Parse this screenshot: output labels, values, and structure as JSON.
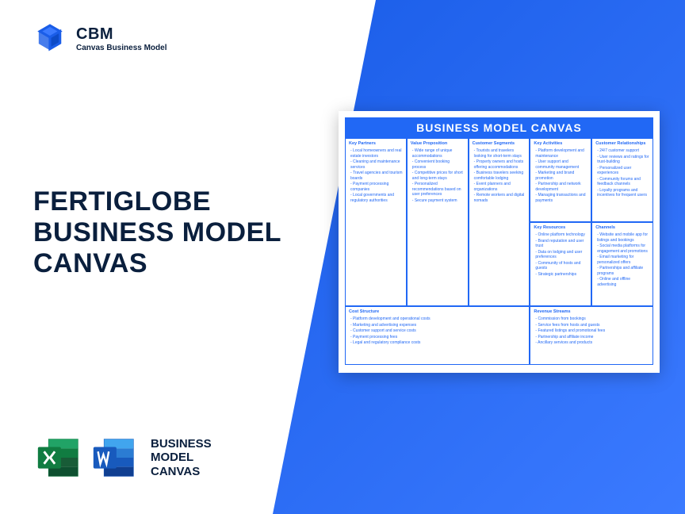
{
  "logo": {
    "title": "CBM",
    "subtitle": "Canvas Business Model"
  },
  "mainTitle": {
    "line1": "FERTIGLOBE",
    "line2": "BUSINESS MODEL",
    "line3": "CANVAS"
  },
  "bottomLabel": {
    "line1": "BUSINESS",
    "line2": "MODEL",
    "line3": "CANVAS"
  },
  "canvas": {
    "header": "BUSINESS MODEL CANVAS",
    "keyPartners": {
      "title": "Key Partners",
      "items": [
        "- Local homeowners and real estate investors",
        "- Cleaning and maintenance services",
        "- Travel agencies and tourism boards",
        "- Payment processing companies",
        "- Local governments and regulatory authorities"
      ]
    },
    "keyActivities": {
      "title": "Key Activities",
      "items": [
        "- Platform development and maintenance",
        "- User support and community management",
        "- Marketing and brand promotion",
        "- Partnership and network development",
        "- Managing transactions and payments"
      ]
    },
    "keyResources": {
      "title": "Key Resources",
      "items": [
        "- Online platform technology",
        "- Brand reputation and user trust",
        "- Data on lodging and user preferences",
        "- Community of hosts and guests",
        "- Strategic partnerships"
      ]
    },
    "valueProposition": {
      "title": "Value Proposition",
      "items": [
        "- Wide range of unique accommodations",
        "- Convenient booking process",
        "- Competitive prices for short and long-term stays",
        "- Personalized recommendations based on user preferences",
        "- Secure payment system"
      ]
    },
    "customerRelationships": {
      "title": "Customer Relationships",
      "items": [
        "- 24/7 customer support",
        "- User reviews and ratings for trust-building",
        "- Personalized user experiences",
        "- Community forums and feedback channels",
        "- Loyalty programs and incentives for frequent users"
      ]
    },
    "channels": {
      "title": "Channels",
      "items": [
        "- Website and mobile app for listings and bookings",
        "- Social media platforms for engagement and promotions",
        "- Email marketing for personalized offers",
        "- Partnerships and affiliate programs",
        "- Online and offline advertising"
      ]
    },
    "customerSegments": {
      "title": "Customer Segments",
      "items": [
        "- Tourists and travelers looking for short-term stays",
        "- Property owners and hosts offering accommodations",
        "- Business travelers seeking comfortable lodging",
        "- Event planners and organizations",
        "- Remote workers and digital nomads"
      ]
    },
    "costStructure": {
      "title": "Cost Structure",
      "items": [
        "- Platform development and operational costs",
        "- Marketing and advertising expenses",
        "- Customer support and service costs",
        "- Payment processing fees",
        "- Legal and regulatory compliance costs"
      ]
    },
    "revenueStreams": {
      "title": "Revenue Streams",
      "items": [
        "- Commission from bookings",
        "- Service fees from hosts and guests",
        "- Featured listings and promotional fees",
        "- Partnership and affiliate income",
        "- Ancillary services and products"
      ]
    }
  },
  "colors": {
    "primary": "#2168f5",
    "dark": "#0a1f3d",
    "excel": "#107c41",
    "word": "#185abd"
  }
}
